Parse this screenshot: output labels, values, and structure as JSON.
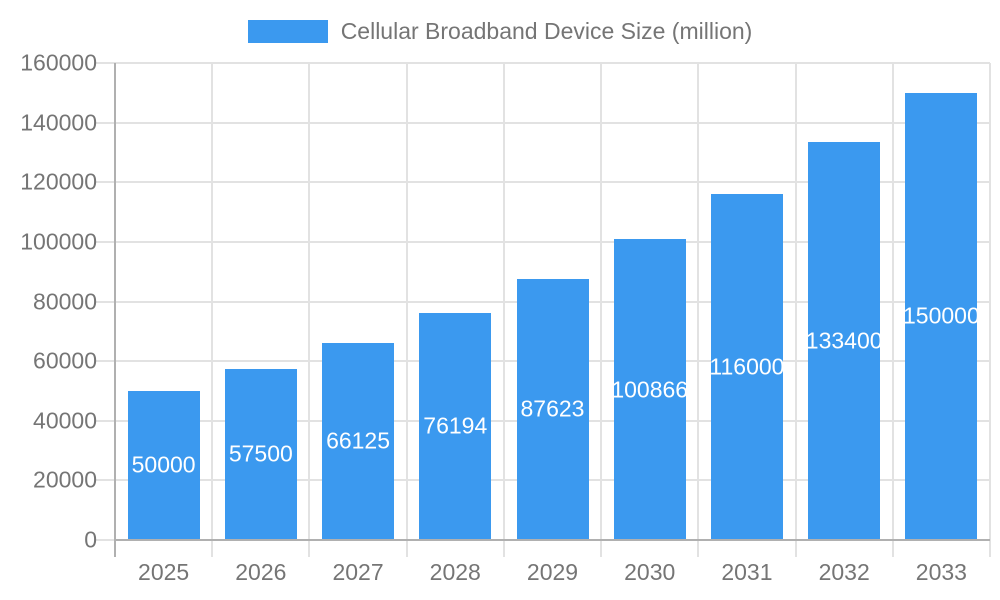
{
  "legend": {
    "label": "Cellular Broadband Device Size (million)"
  },
  "chart_data": {
    "type": "bar",
    "title": "Cellular Broadband Device Size (million)",
    "categories": [
      "2025",
      "2026",
      "2027",
      "2028",
      "2029",
      "2030",
      "2031",
      "2032",
      "2033"
    ],
    "values": [
      50000,
      57500,
      66125,
      76194,
      87623,
      100866,
      116000,
      133400,
      150000
    ],
    "xlabel": "",
    "ylabel": "",
    "ylim": [
      0,
      160000
    ],
    "ytick_step": 20000,
    "ytick_labels": [
      "0",
      "20000",
      "40000",
      "60000",
      "80000",
      "100000",
      "120000",
      "140000",
      "160000"
    ],
    "value_labels": [
      "50000",
      "57500",
      "66125",
      "76194",
      "87623",
      "100866",
      "116000",
      "133400",
      "150000"
    ],
    "legend_position": "top-center",
    "grid": true,
    "colors": {
      "bar": "#3b99ef",
      "value_label": "#ffffff",
      "axis_label": "#757575",
      "gridline": "#e2e2e2",
      "axis_line": "#b0b0b0",
      "background": "#ffffff"
    }
  }
}
